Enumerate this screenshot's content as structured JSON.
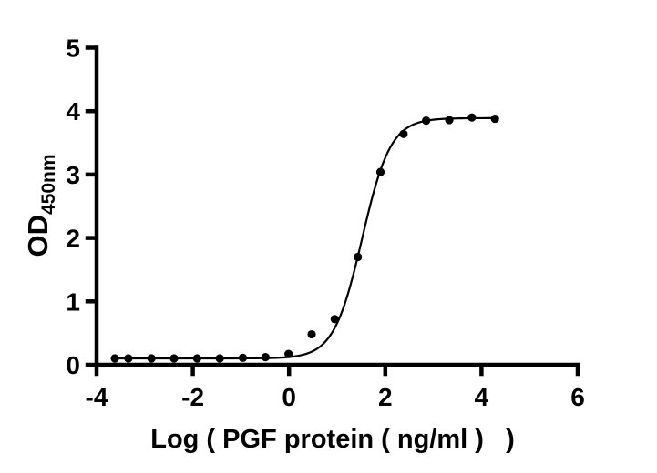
{
  "figure": {
    "background": "#ffffff",
    "description": "Sigmoidal ELISA dose-response curve, black on white, GraphPad style"
  },
  "chart_data": {
    "type": "scatter",
    "title": "",
    "x_axis_title": "Log ( PGF protein ( ng/ml )   )",
    "y_axis_title": {
      "main": "OD",
      "sub": "450nm"
    },
    "xlim": [
      -4,
      6
    ],
    "ylim": [
      0,
      5
    ],
    "x_ticks": {
      "values": [
        -4,
        -2,
        0,
        2,
        4,
        6
      ],
      "labels": [
        "-4",
        "-2",
        "0",
        "2",
        "4",
        "6"
      ]
    },
    "y_ticks": {
      "values": [
        0,
        1,
        2,
        3,
        4,
        5
      ],
      "labels": [
        "0",
        "1",
        "2",
        "3",
        "4",
        "5"
      ]
    },
    "grid": false,
    "legend_position": "none",
    "axis_color": "#000000",
    "marker_color": "#000000",
    "curve_color": "#000000",
    "points": [
      {
        "x": -3.62,
        "y": 0.1
      },
      {
        "x": -3.34,
        "y": 0.1
      },
      {
        "x": -2.86,
        "y": 0.1
      },
      {
        "x": -2.39,
        "y": 0.1
      },
      {
        "x": -1.91,
        "y": 0.1
      },
      {
        "x": -1.44,
        "y": 0.1
      },
      {
        "x": -0.96,
        "y": 0.11
      },
      {
        "x": -0.49,
        "y": 0.12
      },
      {
        "x": -0.01,
        "y": 0.17
      },
      {
        "x": 0.47,
        "y": 0.48
      },
      {
        "x": 0.95,
        "y": 0.72
      },
      {
        "x": 1.43,
        "y": 1.7
      },
      {
        "x": 1.9,
        "y": 3.04
      },
      {
        "x": 2.38,
        "y": 3.64
      },
      {
        "x": 2.85,
        "y": 3.85
      },
      {
        "x": 3.33,
        "y": 3.86
      },
      {
        "x": 3.8,
        "y": 3.9
      },
      {
        "x": 4.28,
        "y": 3.88
      }
    ],
    "fit_curve": {
      "model": "four-parameter-logistic",
      "bottom": 0.1,
      "top": 3.89,
      "log_ec50": 1.52,
      "hill_slope": 1.47,
      "x_start": -3.62,
      "x_end": 4.28
    }
  }
}
